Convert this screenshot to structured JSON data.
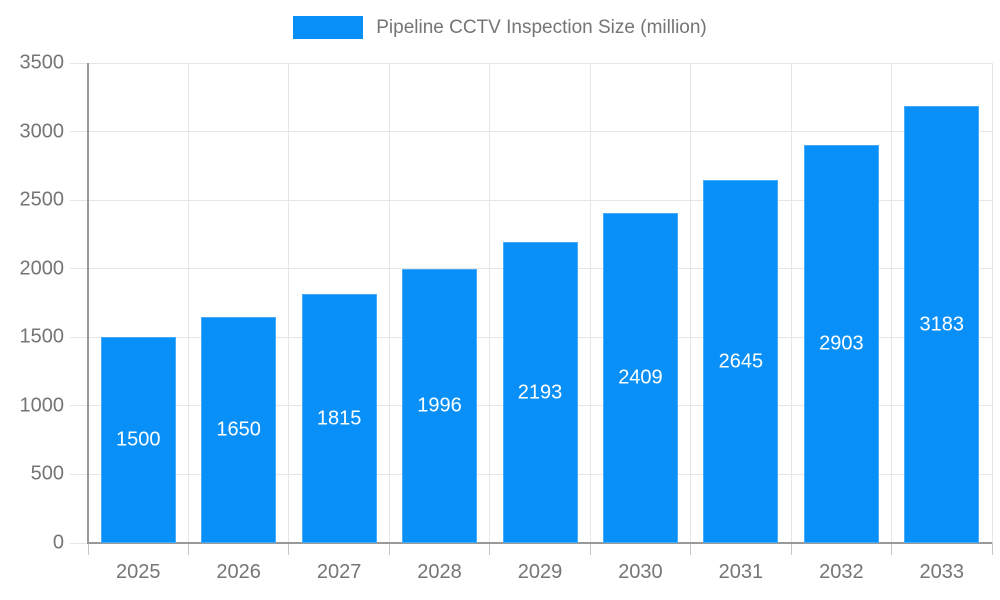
{
  "chart_data": {
    "type": "bar",
    "title": "Pipeline CCTV Inspection Size (million)",
    "categories": [
      "2025",
      "2026",
      "2027",
      "2028",
      "2029",
      "2030",
      "2031",
      "2032",
      "2033"
    ],
    "values": [
      1500,
      1650,
      1815,
      1996,
      2193,
      2409,
      2645,
      2903,
      3183
    ],
    "xlabel": "",
    "ylabel": "",
    "ylim": [
      0,
      3500
    ],
    "ytick_step": 500,
    "ytick_labels": [
      "0",
      "500",
      "1000",
      "1500",
      "2000",
      "2500",
      "3000",
      "3500"
    ],
    "grid": true,
    "legend_position": "top-center",
    "colors": {
      "bar": "#0890F8",
      "bar_label": "#FFFFFF",
      "grid": "#E6E6E6",
      "axis_line": "#999999",
      "tick": "#C6C6C6",
      "axis_text": "#757575",
      "legend_text": "#757575",
      "background": "#FFFFFF"
    }
  }
}
